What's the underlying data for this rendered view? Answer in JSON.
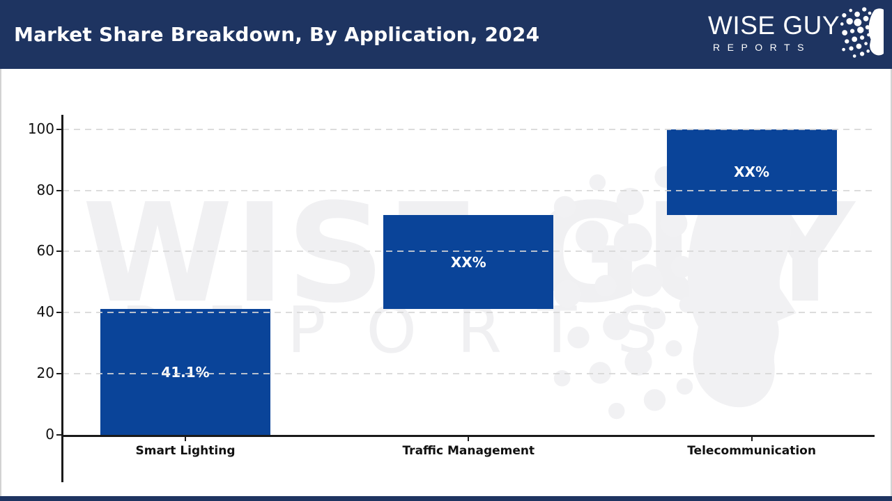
{
  "header": {
    "title": "Market Share Breakdown, By Application, 2024",
    "bg_color": "#1e3461",
    "logo": {
      "line1": "WISE GUY",
      "line2": "REPORTS"
    }
  },
  "watermark": {
    "line1": "WISE GUY",
    "line2": "REPORTS"
  },
  "footer": {
    "bg_color": "#1e3461"
  },
  "chart_data": {
    "type": "bar",
    "variant": "floating-stacked-percentage",
    "title": "Market Share Breakdown, By Application, 2024",
    "categories": [
      "Smart Lighting",
      "Traffic Management",
      "Telecommunication"
    ],
    "bars": [
      {
        "category": "Smart Lighting",
        "from": 0,
        "to": 41.1,
        "label": "41.1%"
      },
      {
        "category": "Traffic Management",
        "from": 41.1,
        "to": 72,
        "label": "XX%"
      },
      {
        "category": "Telecommunication",
        "from": 72,
        "to": 100,
        "label": "XX%"
      }
    ],
    "yticks": [
      0,
      20,
      40,
      60,
      80,
      100
    ],
    "ylim": [
      0,
      105
    ],
    "xlabel": "",
    "ylabel": "",
    "grid": "horizontal-dashed",
    "legend": "none",
    "bar_color": "#0a4499",
    "grid_color": "#d6d6d6",
    "axis_color": "#1a1a1a",
    "label_color": "#ffffff"
  }
}
